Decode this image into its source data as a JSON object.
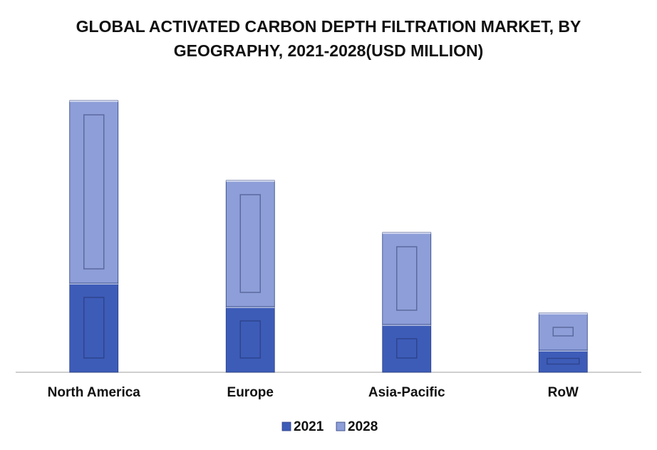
{
  "chart_data": {
    "type": "bar",
    "stacked": true,
    "title": "GLOBAL ACTIVATED CARBON DEPTH FILTRATION MARKET, BY GEOGRAPHY, 2021-2028(USD MILLION)",
    "categories": [
      "North America",
      "Europe",
      "Asia-Pacific",
      "RoW"
    ],
    "series": [
      {
        "name": "2021",
        "color": "#3d5cb8",
        "values": [
          125,
          92,
          67,
          31
        ]
      },
      {
        "name": "2028",
        "color": "#8d9ed8",
        "values": [
          256,
          177,
          129,
          52
        ]
      }
    ],
    "ylim": [
      0,
      400
    ],
    "legend": "bottom"
  }
}
